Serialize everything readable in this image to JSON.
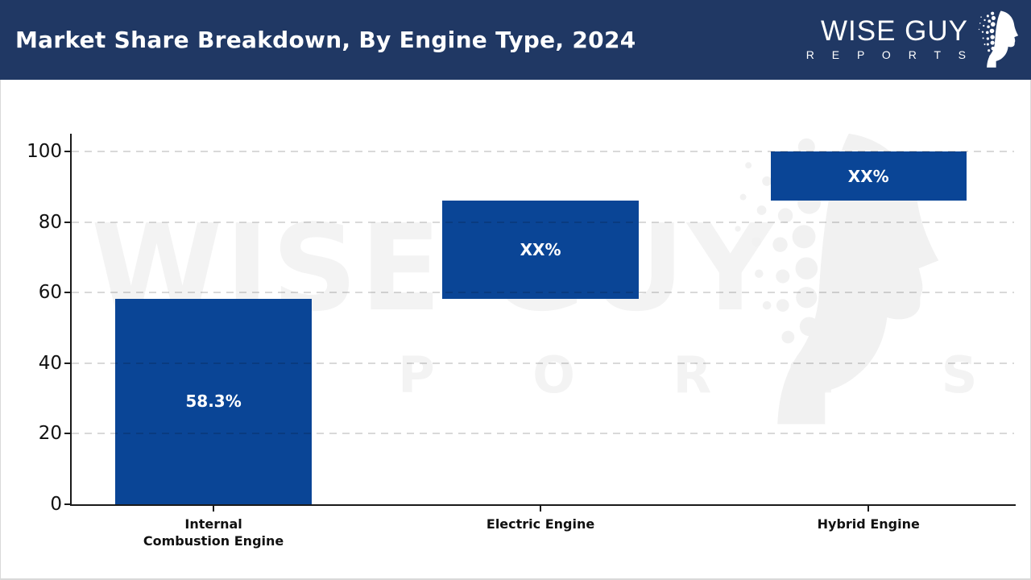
{
  "header": {
    "title": "Market Share Breakdown, By Engine Type, 2024",
    "bg_color": "#203864",
    "logo": {
      "wordmark": "WISE GUY",
      "tagline": "R E P O R T S",
      "icon": "dotted-head-profile-icon"
    }
  },
  "watermark": {
    "wordmark": "WISE GUY",
    "tagline": "R E P O R T S",
    "icon": "dotted-head-profile-icon"
  },
  "chart_data": {
    "type": "bar",
    "subtype": "waterfall",
    "title": "Market Share Breakdown, By Engine Type, 2024",
    "categories": [
      "Internal Combustion Engine",
      "Electric Engine",
      "Hybrid Engine"
    ],
    "series": [
      {
        "name": "Internal Combustion Engine",
        "category_lines": [
          "Internal",
          "Combustion Engine"
        ],
        "start": 0,
        "end": 58.3,
        "value": 58.3,
        "value_label": "58.3%"
      },
      {
        "name": "Electric Engine",
        "category_lines": [
          "Electric Engine"
        ],
        "start": 58.3,
        "end": 86.0,
        "value": 27.7,
        "value_label": "XX%"
      },
      {
        "name": "Hybrid Engine",
        "category_lines": [
          "Hybrid Engine"
        ],
        "start": 86.0,
        "end": 100.0,
        "value": 14.0,
        "value_label": "XX%"
      }
    ],
    "xlabel": "",
    "ylabel": "",
    "yticks": [
      0,
      20,
      40,
      60,
      80,
      100
    ],
    "ylim": [
      0,
      105
    ],
    "grid": "horizontal-dashed-over-bars",
    "legend": "none",
    "bar_color": "#0a4596",
    "bar_label_color": "#ffffff",
    "axis_color": "#1a1a1a",
    "gridline_color": "rgba(0,0,0,0.15)"
  }
}
